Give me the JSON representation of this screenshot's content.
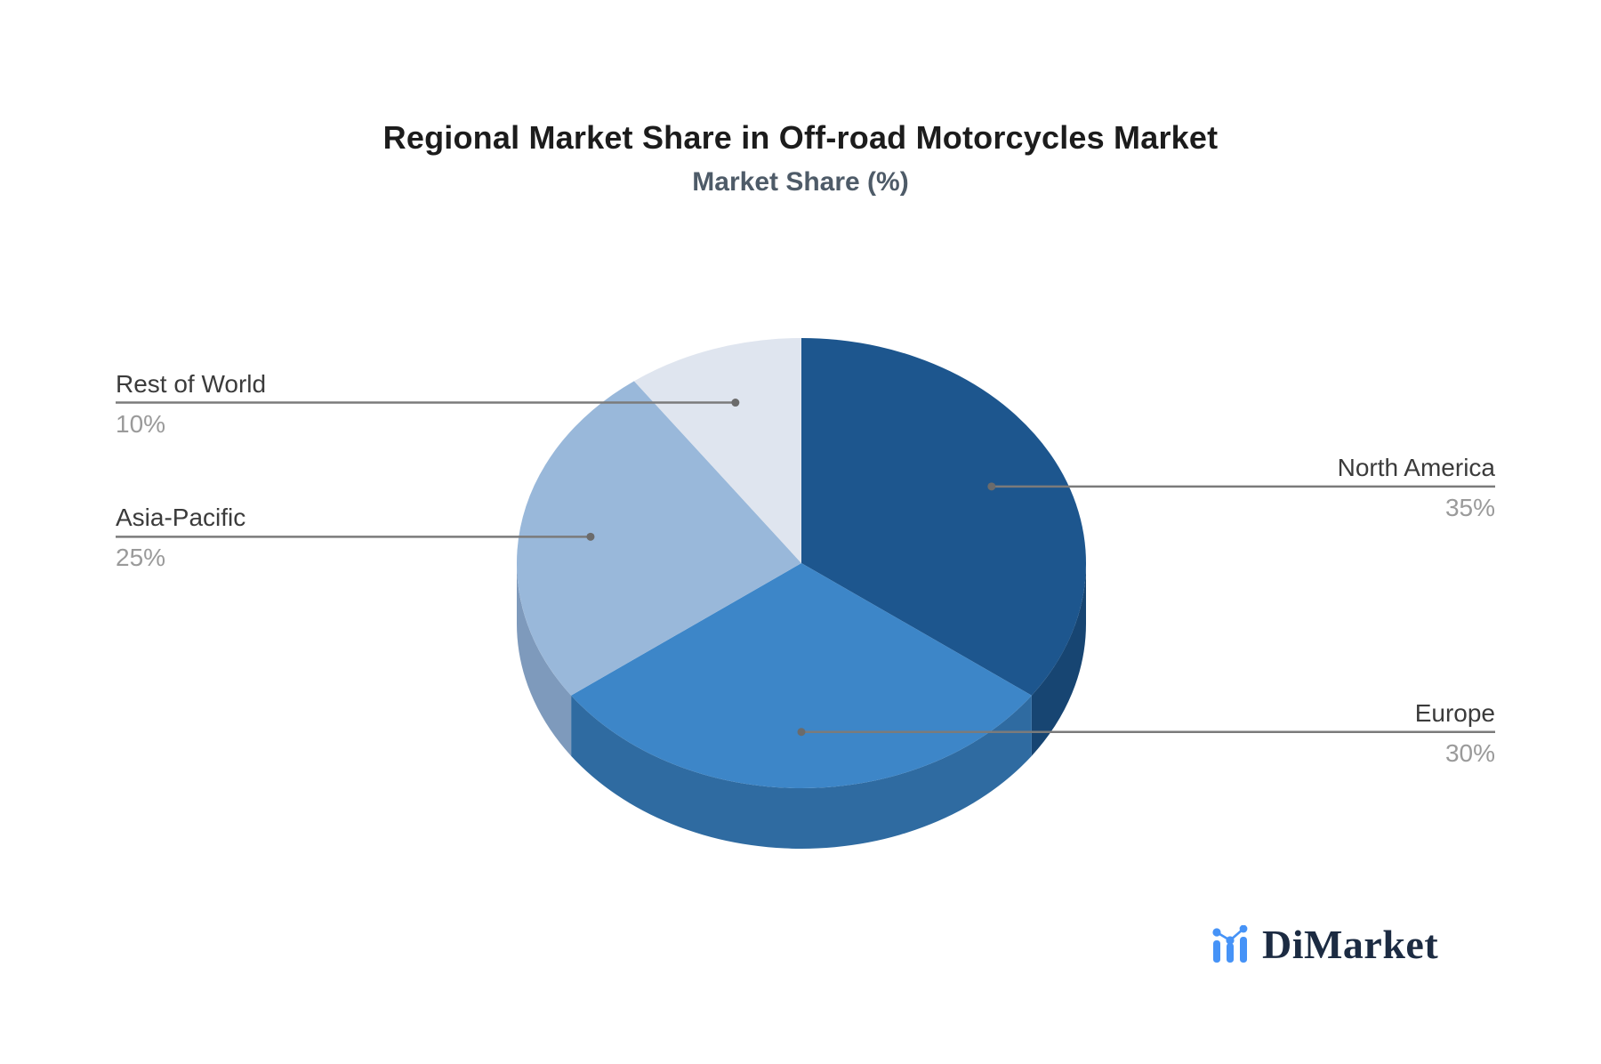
{
  "title": "Regional Market Share in Off-road Motorcycles Market",
  "subtitle": "Market Share (%)",
  "logo": {
    "text": "DiMarket",
    "icon": "bar-line-chart-icon",
    "icon_color": "#4693f7",
    "text_color": "#1c2b42"
  },
  "style": {
    "background": "#ffffff",
    "title_color": "#1c1c1c",
    "subtitle_color": "#4e5b68",
    "leader_line_color": "#7b7b7b",
    "leader_dot_color": "#6b6b6b",
    "label_text_color": "#3b3b3b",
    "value_text_color": "#9a9a9a"
  },
  "chart_data": {
    "type": "pie",
    "title": "Regional Market Share in Off-road Motorcycles Market",
    "subtitle": "Market Share (%)",
    "unit": "%",
    "effect": "3d",
    "start_angle_deg": 0,
    "direction": "clockwise",
    "legend": "none",
    "slices": [
      {
        "label": "North America",
        "value": 35,
        "display": "35%",
        "color": "#1d568e",
        "side_color": "#174572",
        "label_side": "right"
      },
      {
        "label": "Europe",
        "value": 30,
        "display": "30%",
        "color": "#3d86c8",
        "side_color": "#2f6ba1",
        "label_side": "right"
      },
      {
        "label": "Asia-Pacific",
        "value": 25,
        "display": "25%",
        "color": "#99b8da",
        "side_color": "#7e9abc",
        "label_side": "left"
      },
      {
        "label": "Rest of World",
        "value": 10,
        "display": "10%",
        "color": "#dfe5ef",
        "side_color": "#b9c4d4",
        "label_side": "left"
      }
    ]
  }
}
